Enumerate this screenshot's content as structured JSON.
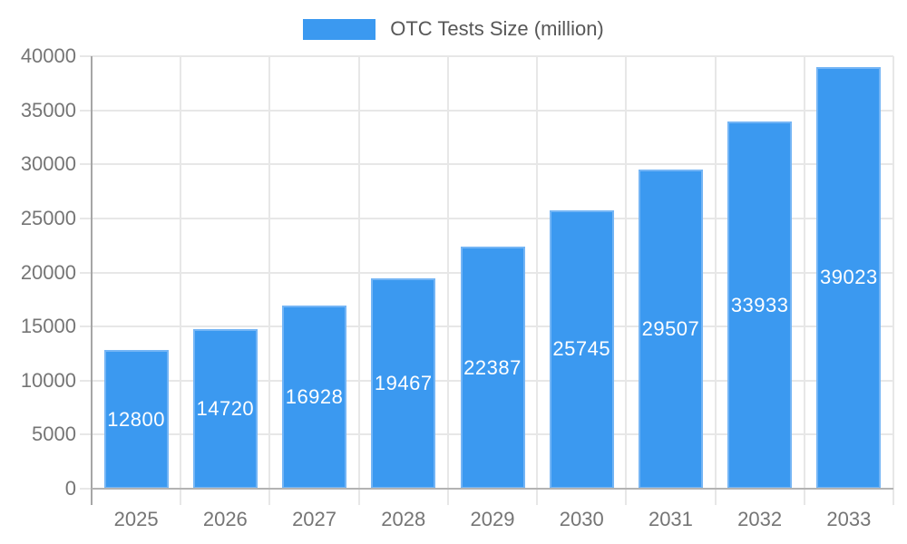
{
  "chart_data": {
    "type": "bar",
    "title": "OTC Tests Size (million)",
    "legend_position": "top",
    "categories": [
      "2025",
      "2026",
      "2027",
      "2028",
      "2029",
      "2030",
      "2031",
      "2032",
      "2033"
    ],
    "series": [
      {
        "name": "OTC Tests Size (million)",
        "values": [
          12800,
          14720,
          16928,
          19467,
          22387,
          25745,
          29507,
          33933,
          39023
        ]
      }
    ],
    "xlabel": "",
    "ylabel": "",
    "ylim": [
      0,
      40000
    ],
    "yticks": [
      0,
      5000,
      10000,
      15000,
      20000,
      25000,
      30000,
      35000,
      40000
    ],
    "grid": true,
    "bar_value_labels_shown": true,
    "style": {
      "bar_color": "#3b99f0",
      "bar_border_color": "#74b5f5",
      "bar_value_label_color": "#ffffff",
      "axis_text_color": "#757575",
      "legend_text_color": "#575757",
      "grid_color": "#e7e7e7",
      "y_axis_line_color": "#a6a6a6",
      "x_axis_line_color": "#b3b3b3"
    }
  }
}
